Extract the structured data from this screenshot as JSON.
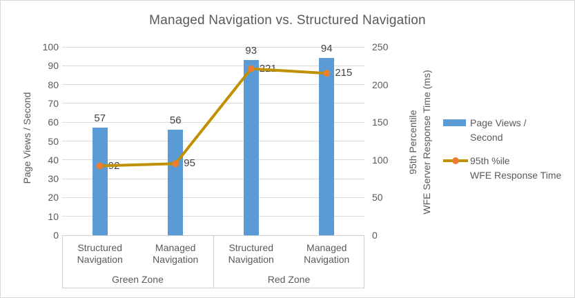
{
  "chart_data": {
    "type": "combo-bar-line",
    "title": "Managed Navigation vs. Structured Navigation",
    "categories": [
      "Structured Navigation",
      "Managed Navigation",
      "Structured Navigation",
      "Managed Navigation"
    ],
    "category_groups": [
      {
        "label": "Green Zone",
        "span": 2
      },
      {
        "label": "Red Zone",
        "span": 2
      }
    ],
    "series": [
      {
        "name": "Page Views / Second",
        "type": "bar",
        "axis": "left",
        "color": "#5b9bd5",
        "values": [
          57,
          56,
          93,
          94
        ],
        "legend_lines": [
          "Page Views /",
          "Second"
        ]
      },
      {
        "name": "95th %ile WFE Response Time",
        "type": "line",
        "axis": "right",
        "color": "#bf9000",
        "marker_color": "#ed7d31",
        "values": [
          92,
          95,
          221,
          215
        ],
        "legend_lines": [
          "95th %ile",
          "WFE Response Time"
        ]
      }
    ],
    "left_axis": {
      "title": "Page Views / Second",
      "min": 0,
      "max": 100,
      "ticks": [
        100,
        90,
        80,
        70,
        60,
        50,
        40,
        30,
        20,
        10,
        0
      ]
    },
    "right_axis": {
      "title_lines": [
        "95th Percentile",
        "WFE Server Response Time (ms)"
      ],
      "min": 0,
      "max": 250,
      "ticks": [
        250,
        200,
        150,
        100,
        50,
        0
      ]
    },
    "legend_position": "right",
    "grid": true,
    "colors": {
      "grid": "#d9d9d9",
      "axis_box_border": "#d0d0d0",
      "text": "#595959",
      "data_label_text": "#404040"
    }
  }
}
